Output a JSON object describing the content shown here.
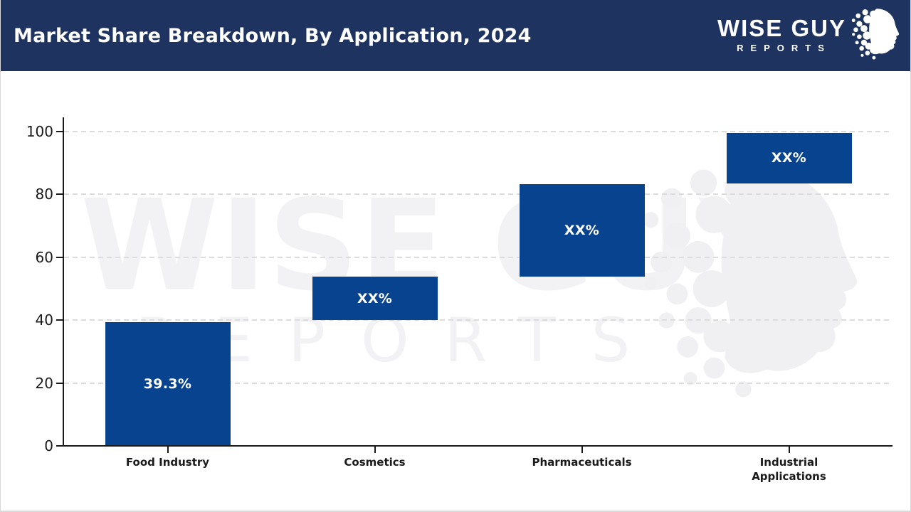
{
  "header": {
    "title": "Market Share Breakdown, By Application, 2024",
    "logo": {
      "name_top": "WISE GUY",
      "name_bottom": "REPORTS"
    }
  },
  "watermark": {
    "text_top": "WISE GUY",
    "text_bottom": "REPORTS"
  },
  "chart_data": {
    "type": "bar",
    "subtype": "waterfall",
    "title": "Market Share Breakdown, By Application, 2024",
    "categories": [
      "Food Industry",
      "Cosmetics",
      "Pharmaceuticals",
      "Industrial Applications"
    ],
    "series": [
      {
        "name": "Market Share",
        "segments": [
          {
            "category": "Food Industry",
            "start": 0,
            "end": 39.3,
            "label": "39.3%"
          },
          {
            "category": "Cosmetics",
            "start": 40.0,
            "end": 53.8,
            "label": "XX%"
          },
          {
            "category": "Pharmaceuticals",
            "start": 53.8,
            "end": 83.2,
            "label": "XX%"
          },
          {
            "category": "Industrial Applications",
            "start": 83.4,
            "end": 99.6,
            "label": "XX%"
          }
        ]
      }
    ],
    "xlabel": "",
    "ylabel": "",
    "ylim": [
      0,
      104.5
    ],
    "yticks": [
      0,
      20,
      40,
      60,
      80,
      100
    ],
    "grid": "horizontal-dashed",
    "legend": "none"
  },
  "colors": {
    "header_bg": "#1f3361",
    "bar": "#084390",
    "bar_label": "#ffffff",
    "axis": "#1a1a1a",
    "grid": "#dcdcdc",
    "watermark": "#f2f2f4",
    "frame_border": "#d9d9d9"
  }
}
